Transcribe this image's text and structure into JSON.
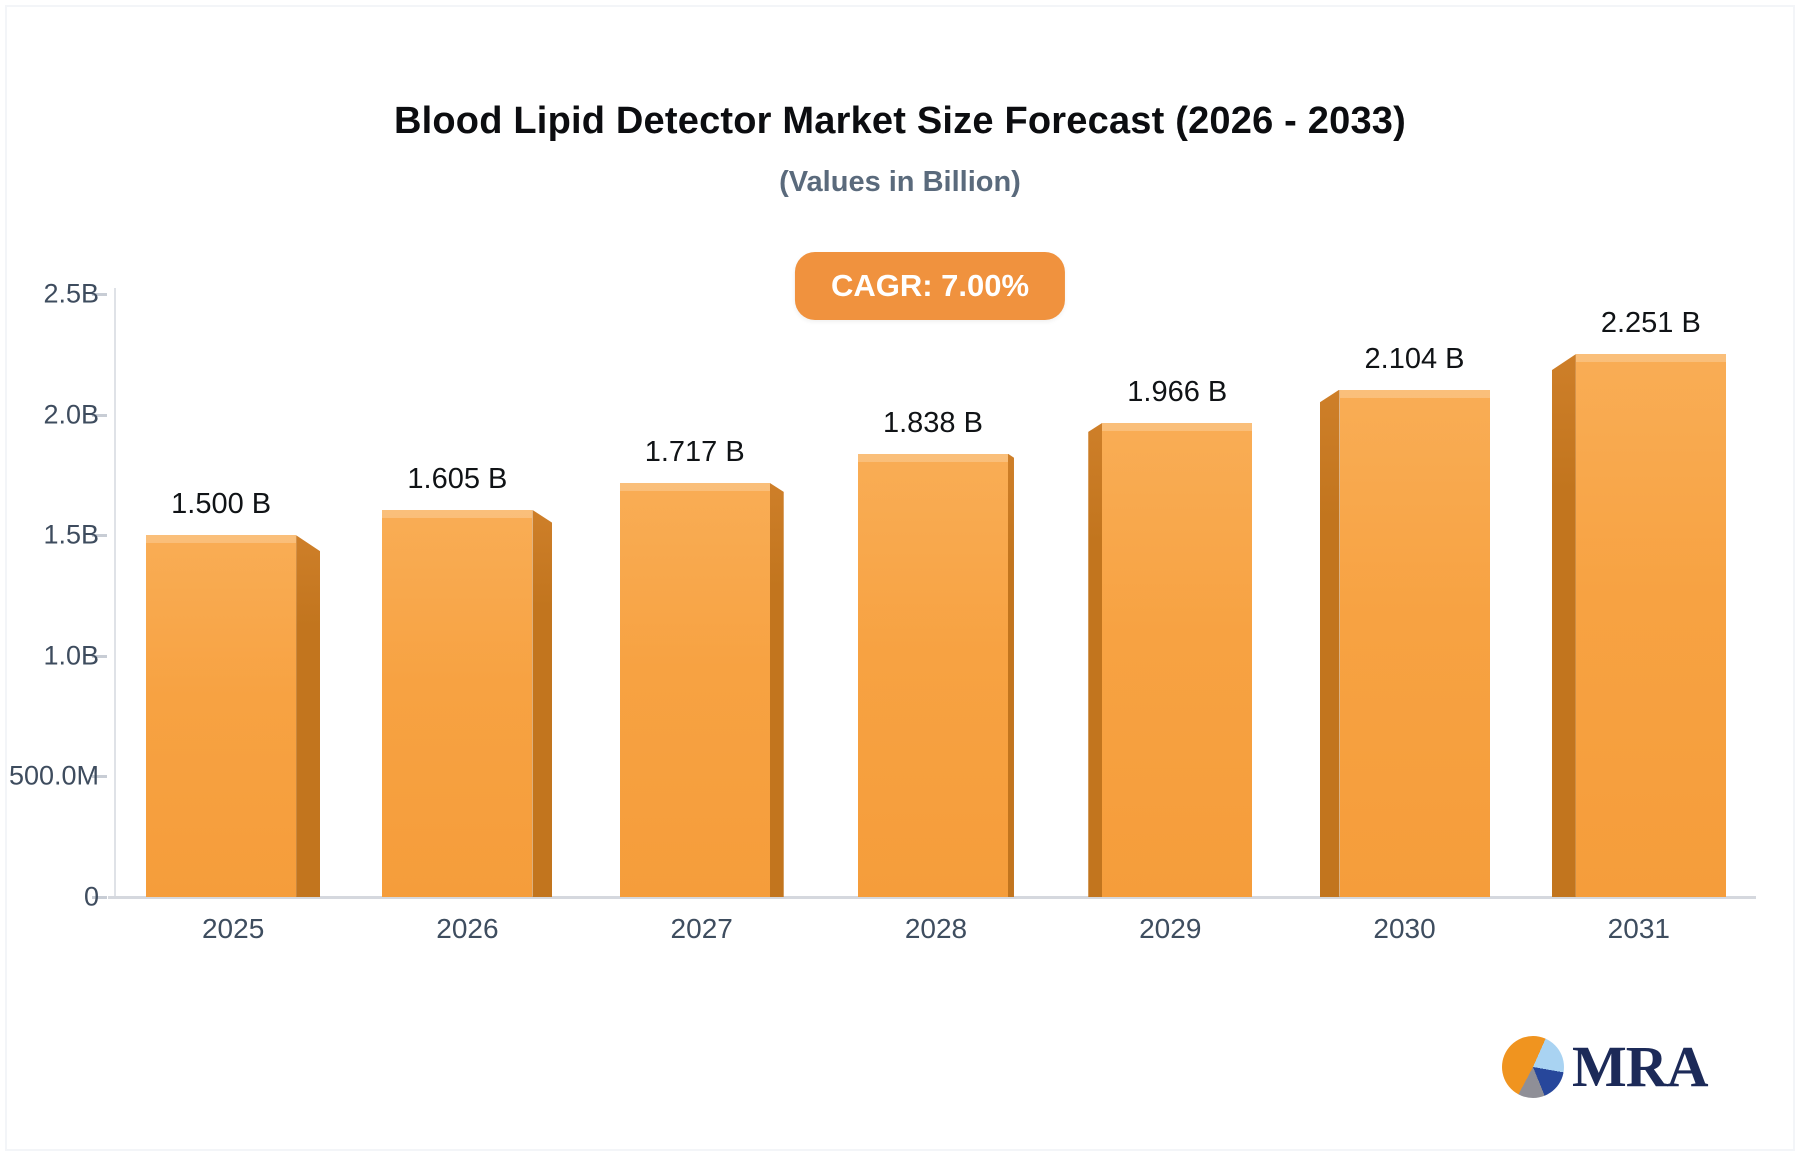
{
  "header": {
    "title": "Blood Lipid Detector Market Size Forecast (2026 - 2033)",
    "subtitle": "(Values in Billion)",
    "badge_label": "CAGR: 7.00%"
  },
  "logo": {
    "text": "MRA",
    "icon": "pie-chart-icon"
  },
  "colors": {
    "bar_face": "#F7A242",
    "bar_side": "#C2751E",
    "badge_background": "#F0923E",
    "badge_text": "#FFFFFF",
    "axis_line": "#D5D8DE",
    "tick_text": "#3E4C5E",
    "title_text": "#0C0D10",
    "subtitle_text": "#5A6A7C",
    "logo_navy": "#1C2A58",
    "logo_orange": "#F0941F"
  },
  "chart_data": {
    "type": "bar",
    "title": "Blood Lipid Detector Market Size Forecast (2026 - 2033)",
    "subtitle": "(Values in Billion)",
    "annotation": "CAGR: 7.00%",
    "categories": [
      "2025",
      "2026",
      "2027",
      "2028",
      "2029",
      "2030",
      "2031"
    ],
    "values": [
      1.5,
      1.605,
      1.717,
      1.838,
      1.966,
      2.104,
      2.251
    ],
    "value_labels": [
      "1.500 B",
      "1.605 B",
      "1.717 B",
      "1.838 B",
      "1.966 B",
      "2.104 B",
      "2.251 B"
    ],
    "xlabel": "",
    "ylabel": "",
    "ylim": [
      0,
      2.5
    ],
    "ytick_labels": [
      "0",
      "500.0M",
      "1.0B",
      "1.5B",
      "2.0B",
      "2.5B"
    ],
    "ytick_values": [
      0,
      0.5,
      1.0,
      1.5,
      2.0,
      2.5
    ],
    "grid": false,
    "legend_position": "none",
    "bar_style": "3d-perspective-center"
  }
}
